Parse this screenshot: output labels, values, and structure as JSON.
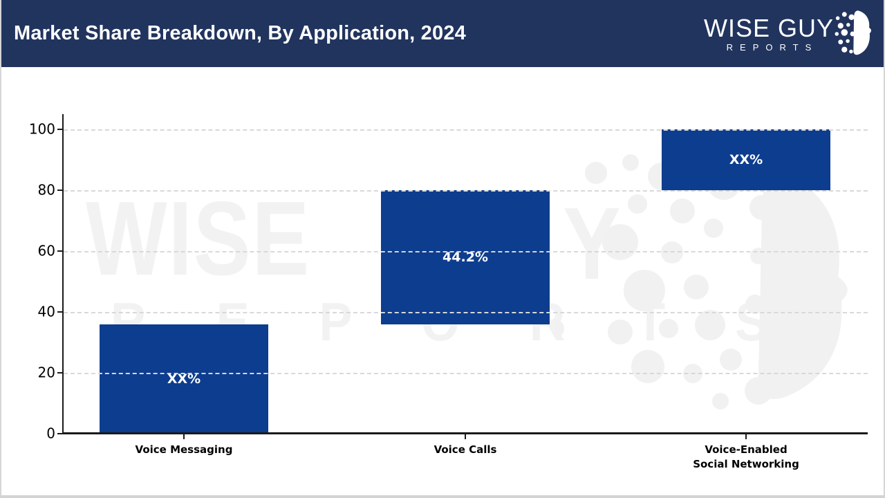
{
  "header": {
    "title": "Market Share Breakdown, By Application, 2024",
    "logo": {
      "brand_top": "WISE GUY",
      "brand_bottom": "REPORTS"
    }
  },
  "watermark": {
    "word1": "WISE",
    "word2": "G",
    "word3": "Y",
    "word4": "R E P O R T S"
  },
  "colors": {
    "header_bg": "#21345e",
    "bar": "#0d3d8f",
    "grid": "#d8d8d8",
    "axis": "#1a1a1a",
    "watermark": "#f2f2f2"
  },
  "chart_data": {
    "type": "bar",
    "variant": "waterfall",
    "title": "Market Share Breakdown, By Application, 2024",
    "categories": [
      "Voice Messaging",
      "Voice Calls",
      "Voice-Enabled Social Networking"
    ],
    "categories_lines": [
      [
        "Voice Messaging"
      ],
      [
        "Voice Calls"
      ],
      [
        "Voice-Enabled",
        "Social Networking"
      ]
    ],
    "bars": [
      {
        "start": 0,
        "end": 35.8,
        "value": 35.8,
        "label": "XX%"
      },
      {
        "start": 35.8,
        "end": 80,
        "value": 44.2,
        "label": "44.2%"
      },
      {
        "start": 80,
        "end": 100,
        "value": 20,
        "label": "XX%"
      }
    ],
    "bar_labels_shown": [
      "XX%",
      "44.2%",
      "XX%"
    ],
    "yticks": [
      0,
      20,
      40,
      60,
      80,
      100
    ],
    "ylim": [
      0,
      105
    ],
    "xlabel": "",
    "ylabel": "",
    "grid": {
      "horizontal": true,
      "style": "dashed"
    },
    "legend": "none",
    "bar_color": "#0d3d8f",
    "bar_label_color": "#ffffff"
  }
}
